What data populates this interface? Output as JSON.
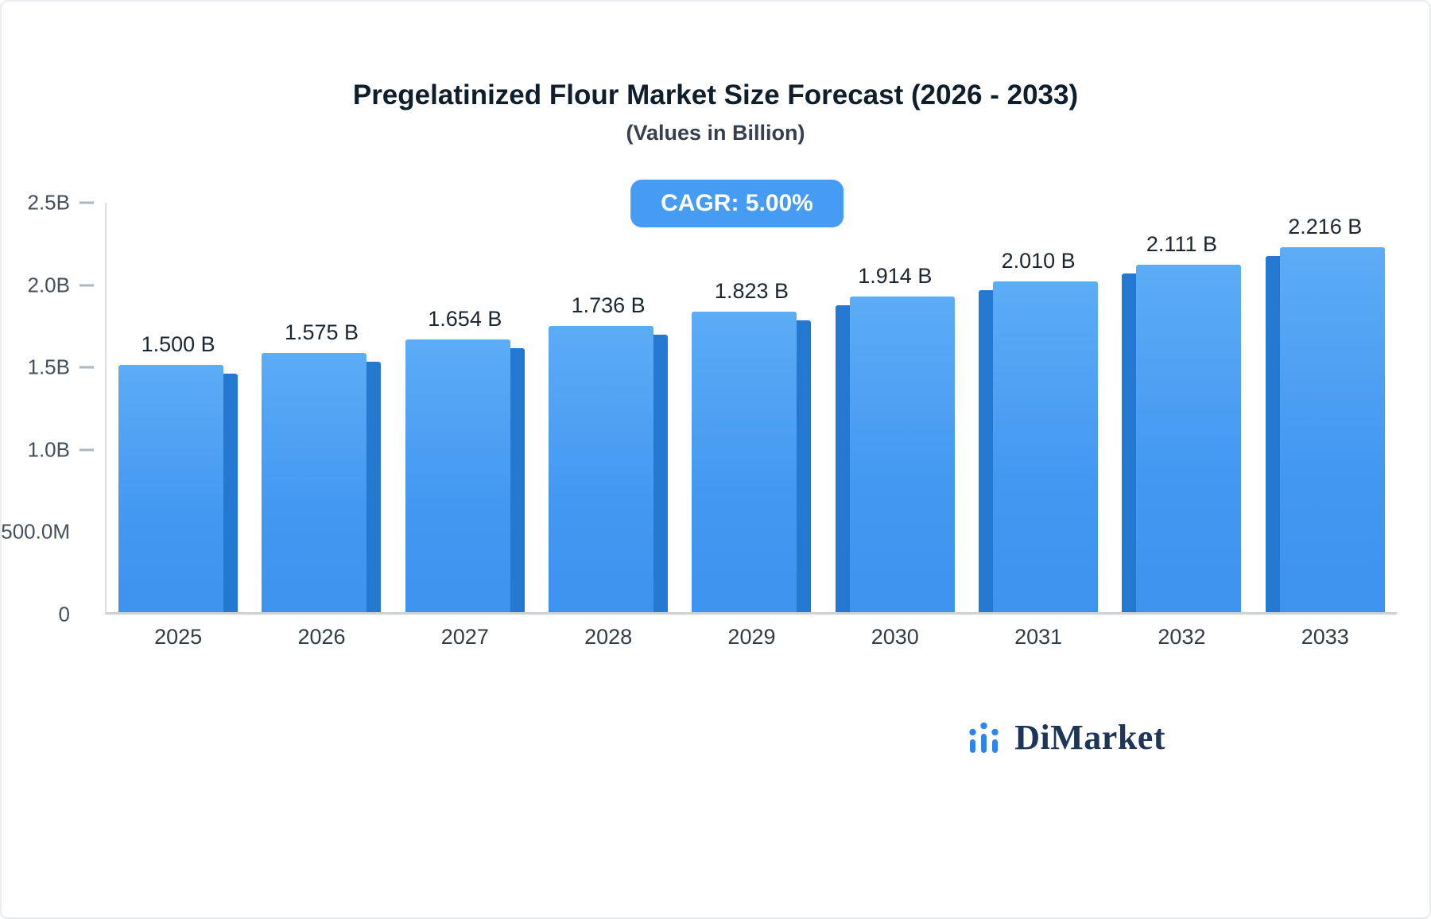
{
  "page": {
    "title": "Pregelatinized Flour Market Size Forecast (2026 - 2033)",
    "subtitle": "(Values in Billion)",
    "cagr_label": "CAGR: 5.00%",
    "brand": "DiMarket"
  },
  "chart_data": {
    "type": "bar",
    "title": "Pregelatinized Flour Market Size Forecast (2026 - 2033)",
    "subtitle": "(Values in Billion)",
    "categories": [
      "2025",
      "2026",
      "2027",
      "2028",
      "2029",
      "2030",
      "2031",
      "2032",
      "2033"
    ],
    "values": [
      1.5,
      1.575,
      1.654,
      1.736,
      1.823,
      1.914,
      2.01,
      2.111,
      2.216
    ],
    "value_labels": [
      "1.500 B",
      "1.575 B",
      "1.654 B",
      "1.736 B",
      "1.823 B",
      "1.914 B",
      "2.010 B",
      "2.111 B",
      "2.216 B"
    ],
    "unit": "Billion",
    "xlabel": "",
    "ylabel": "",
    "ylim": [
      0,
      2.5
    ],
    "yticks": [
      "2.5B",
      "2.0B",
      "1.5B",
      "1.0B",
      "500.0M",
      "0"
    ],
    "ytick_values": [
      2.5,
      2.0,
      1.5,
      1.0,
      0.5,
      0
    ],
    "grid": false,
    "legend": false,
    "annotation": "CAGR: 5.00%"
  },
  "colors": {
    "accent_blue": "#459cf2",
    "bar_front": "#4398f1",
    "bar_side": "#2478cf",
    "title_text": "#0f1e2a",
    "axis_text": "#454f5b",
    "brand_navy": "#1d3557",
    "brand_blue": "#2f86e8"
  }
}
